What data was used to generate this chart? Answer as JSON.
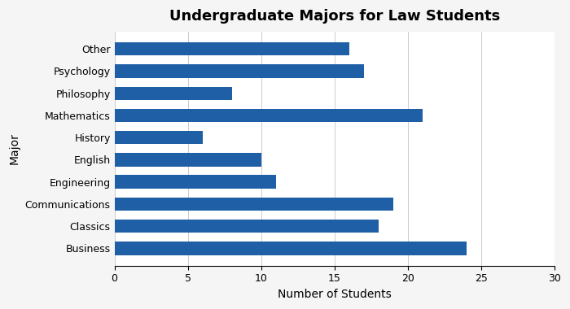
{
  "title": "Undergraduate Majors for Law Students",
  "xlabel": "Number of Students",
  "ylabel": "Major",
  "categories": [
    "Business",
    "Classics",
    "Communications",
    "Engineering",
    "English",
    "History",
    "Mathematics",
    "Philosophy",
    "Psychology",
    "Other"
  ],
  "values": [
    24,
    18,
    19,
    11,
    10,
    6,
    21,
    8,
    17,
    16
  ],
  "bar_color": "#1f5fa6",
  "xlim": [
    0,
    30
  ],
  "xticks": [
    0,
    5,
    10,
    15,
    20,
    25,
    30
  ],
  "title_fontsize": 13,
  "axis_label_fontsize": 10,
  "tick_fontsize": 9,
  "background_color": "#f5f5f5",
  "plot_background": "#ffffff"
}
